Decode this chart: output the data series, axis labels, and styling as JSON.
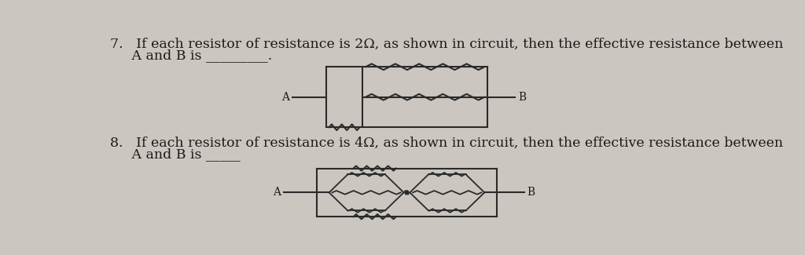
{
  "bg_color": "#cbc7c0",
  "text_color": "#1a1a1a",
  "line_color": "#2a2a2a",
  "q7_line1": "7.   If each resistor of resistance is 2Ω, as shown in circuit, then the effective resistance between",
  "q7_line2": "     A and B is _________.",
  "q8_line1": "8.   If each resistor of resistance is 4Ω, as shown in circuit, then the effective resistance between",
  "q8_line2": "     A and B is _____",
  "font_size": 12.5,
  "fig_width": 10.24,
  "fig_height": 3.25
}
